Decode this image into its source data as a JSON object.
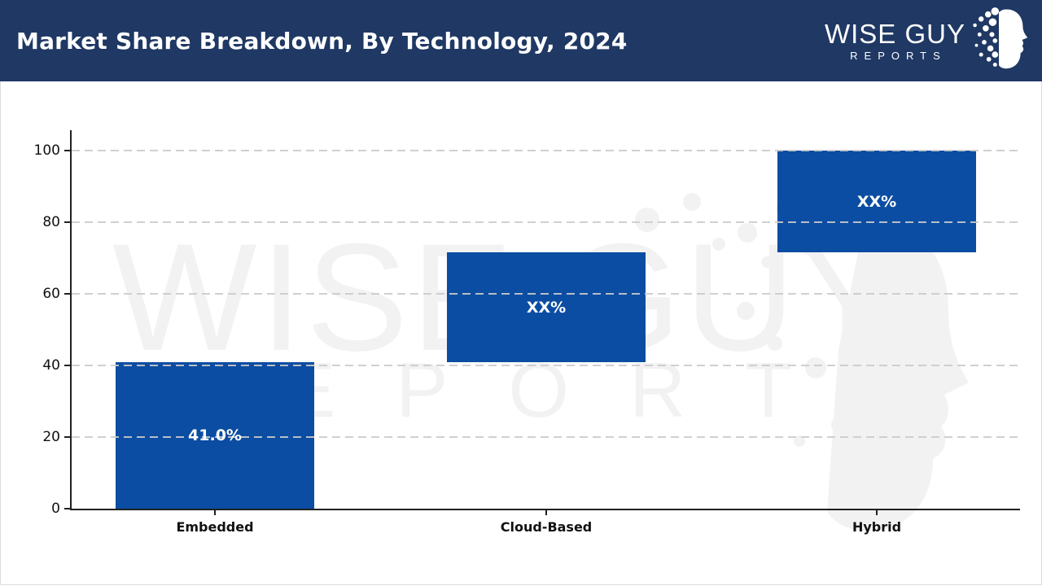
{
  "header": {
    "title": "Market Share Breakdown, By Technology, 2024",
    "logo": {
      "line1": "WISE GUY",
      "line2": "REPORTS"
    }
  },
  "watermark": {
    "line1": "WISE GUY",
    "line2": "REPORTS"
  },
  "chart_data": {
    "type": "bar",
    "subtype": "waterfall",
    "title": "Market Share Breakdown, By Technology, 2024",
    "categories": [
      "Embedded",
      "Cloud-Based",
      "Hybrid"
    ],
    "bars": [
      {
        "category": "Embedded",
        "start": 0,
        "end": 41.0,
        "value": 41.0,
        "label": "41.0%"
      },
      {
        "category": "Cloud-Based",
        "start": 41.0,
        "end": 71.5,
        "value": 30.5,
        "label": "XX%"
      },
      {
        "category": "Hybrid",
        "start": 71.5,
        "end": 100.0,
        "value": 28.5,
        "label": "XX%"
      }
    ],
    "xlabel": "",
    "ylabel": "",
    "ylim": [
      0,
      100
    ],
    "yticks": [
      0,
      20,
      40,
      60,
      80,
      100
    ],
    "legend": null,
    "grid": "horizontal-dashed",
    "colors": {
      "bar": "#0B4DA2",
      "bar_label": "#FFFFFF",
      "grid": "#CBCBCB",
      "axis": "#212121",
      "header_bg": "#1F3864",
      "watermark": "#F2F2F2"
    }
  }
}
